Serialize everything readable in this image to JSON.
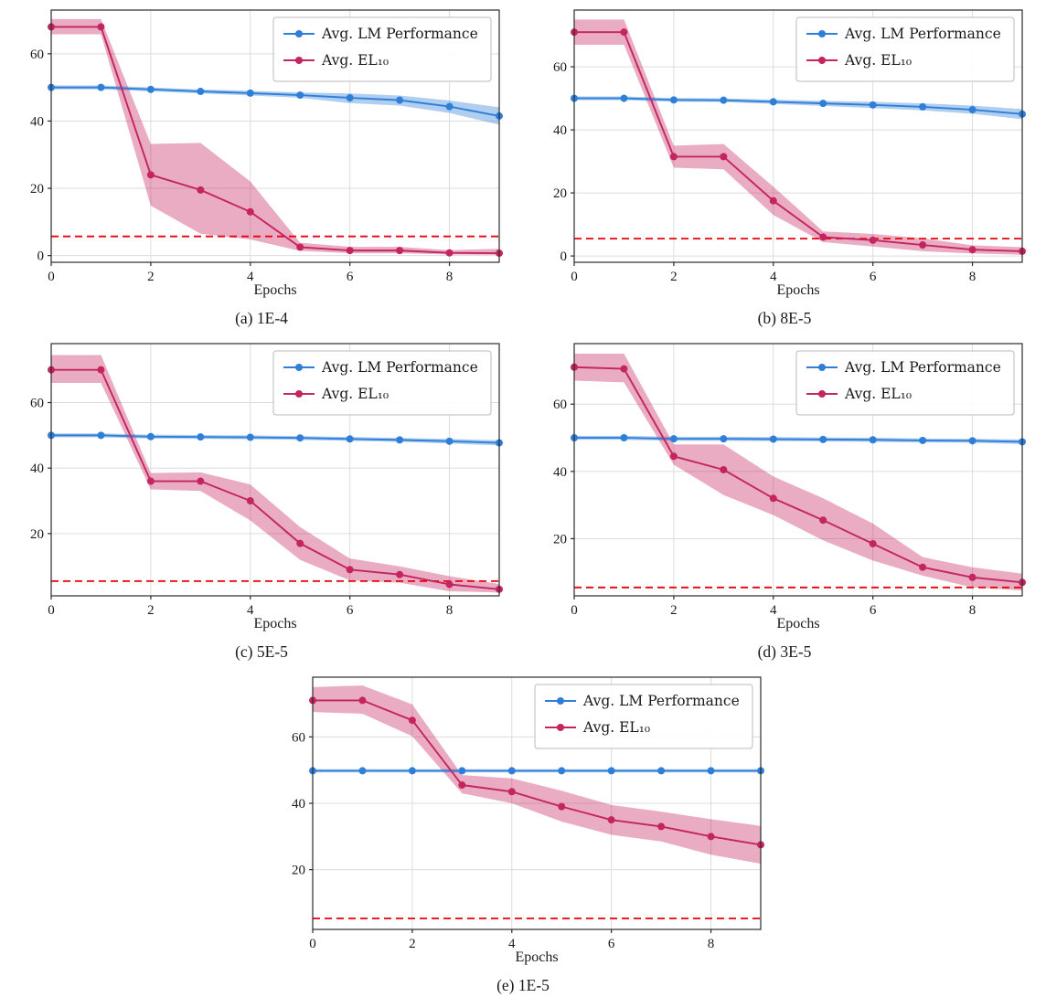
{
  "figure": {
    "description": "Five line subplots comparing Avg. LM Performance and Avg. EL10 across training epochs at different learning rates"
  },
  "chart_data": [
    {
      "type": "line",
      "caption": "(a) 1E-4",
      "xlabel": "Epochs",
      "x": [
        0,
        1,
        2,
        3,
        4,
        5,
        6,
        7,
        8,
        9
      ],
      "xlim": [
        0,
        9
      ],
      "ylim": [
        -2,
        73
      ],
      "xticks": [
        0,
        2,
        4,
        6,
        8
      ],
      "yticks": [
        0,
        20,
        40,
        60
      ],
      "grid": true,
      "legend_loc": "upper right",
      "hline": {
        "y": 5.7,
        "color": "#e8000b",
        "style": "dashed"
      },
      "series": [
        {
          "name": "Avg. LM Performance",
          "color": "#2f7fd8",
          "values": [
            50,
            50,
            49.4,
            48.8,
            48.3,
            47.7,
            46.9,
            46.2,
            44.3,
            41.5
          ],
          "band_low": [
            49.4,
            49.4,
            48.8,
            48.2,
            47.6,
            46.9,
            45.3,
            44.6,
            42.4,
            38.9
          ],
          "band_high": [
            50.6,
            50.6,
            50.0,
            49.4,
            49.0,
            48.5,
            48.2,
            47.6,
            46.1,
            44.1
          ]
        },
        {
          "name": "Avg. EL₁₀",
          "color": "#c4245f",
          "values": [
            68,
            68,
            24,
            19.5,
            13,
            2.5,
            1.5,
            1.5,
            0.8,
            0.7
          ],
          "band_low": [
            65.8,
            65.8,
            14.8,
            6.5,
            4.8,
            1.4,
            0.7,
            0.7,
            0.3,
            0.2
          ],
          "band_high": [
            70.3,
            70.3,
            33.2,
            33.5,
            22,
            3.8,
            2.6,
            2.6,
            1.6,
            2.0
          ]
        }
      ]
    },
    {
      "type": "line",
      "caption": "(b) 8E-5",
      "xlabel": "Epochs",
      "x": [
        0,
        1,
        2,
        3,
        4,
        5,
        6,
        7,
        8,
        9
      ],
      "xlim": [
        0,
        9
      ],
      "ylim": [
        -2,
        78
      ],
      "xticks": [
        0,
        2,
        4,
        6,
        8
      ],
      "yticks": [
        0,
        20,
        40,
        60
      ],
      "grid": true,
      "legend_loc": "upper right",
      "hline": {
        "y": 5.5,
        "color": "#e8000b",
        "style": "dashed"
      },
      "series": [
        {
          "name": "Avg. LM Performance",
          "color": "#2f7fd8",
          "values": [
            50,
            50,
            49.5,
            49.4,
            48.9,
            48.4,
            47.9,
            47.3,
            46.4,
            45.0
          ],
          "band_low": [
            49.4,
            49.4,
            48.9,
            48.8,
            48.2,
            47.6,
            46.9,
            46.2,
            45.1,
            43.4
          ],
          "band_high": [
            50.6,
            50.6,
            50.1,
            50.0,
            49.6,
            49.2,
            48.9,
            48.4,
            47.7,
            46.6
          ]
        },
        {
          "name": "Avg. EL₁₀",
          "color": "#c4245f",
          "values": [
            71,
            71,
            31.5,
            31.5,
            17.5,
            6,
            5,
            3.5,
            2,
            1.5
          ],
          "band_low": [
            67,
            67,
            28,
            27.5,
            13,
            4.4,
            3,
            1.5,
            0.8,
            0.4
          ],
          "band_high": [
            75,
            75,
            35,
            35.5,
            22,
            7.8,
            7,
            5.6,
            3.4,
            2.8
          ]
        }
      ]
    },
    {
      "type": "line",
      "caption": "(c) 5E-5",
      "xlabel": "Epochs",
      "x": [
        0,
        1,
        2,
        3,
        4,
        5,
        6,
        7,
        8,
        9
      ],
      "xlim": [
        0,
        9
      ],
      "ylim": [
        1,
        78
      ],
      "xticks": [
        0,
        2,
        4,
        6,
        8
      ],
      "yticks": [
        20,
        40,
        60
      ],
      "grid": true,
      "legend_loc": "upper right",
      "hline": {
        "y": 5.5,
        "color": "#e8000b",
        "style": "dashed"
      },
      "series": [
        {
          "name": "Avg. LM Performance",
          "color": "#2f7fd8",
          "values": [
            50,
            50,
            49.6,
            49.5,
            49.4,
            49.2,
            48.9,
            48.6,
            48.2,
            47.7
          ],
          "band_low": [
            49.4,
            49.4,
            49.0,
            48.9,
            48.8,
            48.6,
            48.3,
            48.0,
            47.5,
            46.9
          ],
          "band_high": [
            50.6,
            50.6,
            50.2,
            50.1,
            50.0,
            49.8,
            49.5,
            49.2,
            48.9,
            48.5
          ]
        },
        {
          "name": "Avg. EL₁₀",
          "color": "#c4245f",
          "values": [
            70,
            70,
            36,
            36,
            30,
            17,
            9,
            7.5,
            4.5,
            3
          ],
          "band_low": [
            66,
            66,
            33.5,
            33,
            24,
            12,
            5.7,
            5,
            2.4,
            2
          ],
          "band_high": [
            74.5,
            74.5,
            38.5,
            38.7,
            35,
            22,
            12.4,
            10,
            7,
            4.6
          ]
        }
      ]
    },
    {
      "type": "line",
      "caption": "(d) 3E-5",
      "xlabel": "Epochs",
      "x": [
        0,
        1,
        2,
        3,
        4,
        5,
        6,
        7,
        8,
        9
      ],
      "xlim": [
        0,
        9
      ],
      "ylim": [
        3,
        78
      ],
      "xticks": [
        0,
        2,
        4,
        6,
        8
      ],
      "yticks": [
        20,
        40,
        60
      ],
      "grid": true,
      "legend_loc": "upper right",
      "hline": {
        "y": 5.5,
        "color": "#e8000b",
        "style": "dashed"
      },
      "series": [
        {
          "name": "Avg. LM Performance",
          "color": "#2f7fd8",
          "values": [
            50,
            50,
            49.7,
            49.7,
            49.6,
            49.5,
            49.4,
            49.2,
            49.1,
            48.8
          ],
          "band_low": [
            49.4,
            49.4,
            49.1,
            49.1,
            49.0,
            48.9,
            48.8,
            48.6,
            48.5,
            48.1
          ],
          "band_high": [
            50.6,
            50.6,
            50.3,
            50.3,
            50.2,
            50.1,
            50.0,
            49.8,
            49.7,
            49.5
          ]
        },
        {
          "name": "Avg. EL₁₀",
          "color": "#c4245f",
          "values": [
            71,
            70.5,
            44.5,
            40.5,
            32,
            25.5,
            18.5,
            11.5,
            8.5,
            7
          ],
          "band_low": [
            67,
            66.5,
            42,
            33,
            27,
            19.5,
            13.5,
            9,
            5.5,
            4.6
          ],
          "band_high": [
            75,
            75,
            48,
            48,
            38.5,
            32,
            24.5,
            14.5,
            11.5,
            9.6
          ]
        }
      ]
    },
    {
      "type": "line",
      "caption": "(e) 1E-5",
      "xlabel": "Epochs",
      "x": [
        0,
        1,
        2,
        3,
        4,
        5,
        6,
        7,
        8,
        9
      ],
      "xlim": [
        0,
        9
      ],
      "ylim": [
        2,
        78
      ],
      "xticks": [
        0,
        2,
        4,
        6,
        8
      ],
      "yticks": [
        20,
        40,
        60
      ],
      "grid": true,
      "legend_loc": "upper right",
      "hline": {
        "y": 5.3,
        "color": "#e8000b",
        "style": "dashed"
      },
      "series": [
        {
          "name": "Avg. LM Performance",
          "color": "#2f7fd8",
          "values": [
            49.8,
            49.8,
            49.8,
            49.8,
            49.8,
            49.8,
            49.8,
            49.8,
            49.8,
            49.8
          ],
          "band_low": [
            49.3,
            49.3,
            49.3,
            49.3,
            49.3,
            49.3,
            49.3,
            49.3,
            49.3,
            49.3
          ],
          "band_high": [
            50.3,
            50.3,
            50.3,
            50.3,
            50.3,
            50.3,
            50.3,
            50.3,
            50.3,
            50.3
          ]
        },
        {
          "name": "Avg. EL₁₀",
          "color": "#c4245f",
          "values": [
            71,
            71,
            65,
            45.5,
            43.5,
            39,
            35,
            33,
            30,
            27.5
          ],
          "band_low": [
            67.5,
            67,
            60.2,
            43,
            40,
            34.5,
            30.5,
            28.5,
            24.5,
            21.8
          ],
          "band_high": [
            75,
            75.5,
            69.8,
            48.5,
            47.5,
            43.8,
            39.5,
            37.5,
            35.2,
            33.2
          ]
        }
      ]
    }
  ]
}
